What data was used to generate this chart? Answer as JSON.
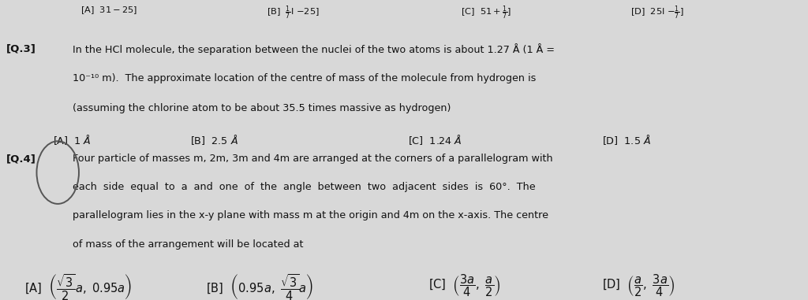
{
  "bg_color": "#d8d8d8",
  "text_color": "#111111",
  "q3_label": "[Q.3]",
  "q3_text_line1": "In the HCl molecule, the separation between the nuclei of the two atoms is about 1.27 Å (1 Å =",
  "q3_text_line2": "10⁻¹⁰ m).  The approximate location of the centre of mass of the molecule from hydrogen is",
  "q3_text_line3": "(assuming the chlorine atom to be about 35.5 times massive as hydrogen)",
  "q4_label": "[Q.4]",
  "q4_text_line1": "Four particle of masses m, 2m, 3m and 4m are arranged at the corners of a parallelogram with",
  "q4_text_line2": "each  side  equal  to  a  and  one  of  the  angle  between  two  adjacent  sides  is  60°.  The",
  "q4_text_line3": "parallelogram lies in the x-y plane with mass m at the origin and 4m on the x-axis. The centre",
  "q4_text_line4": "of mass of the arrangement will be located at",
  "fs_main": 9.2,
  "fs_label": 9.5,
  "fs_small": 8.2,
  "fs_math": 10.5
}
